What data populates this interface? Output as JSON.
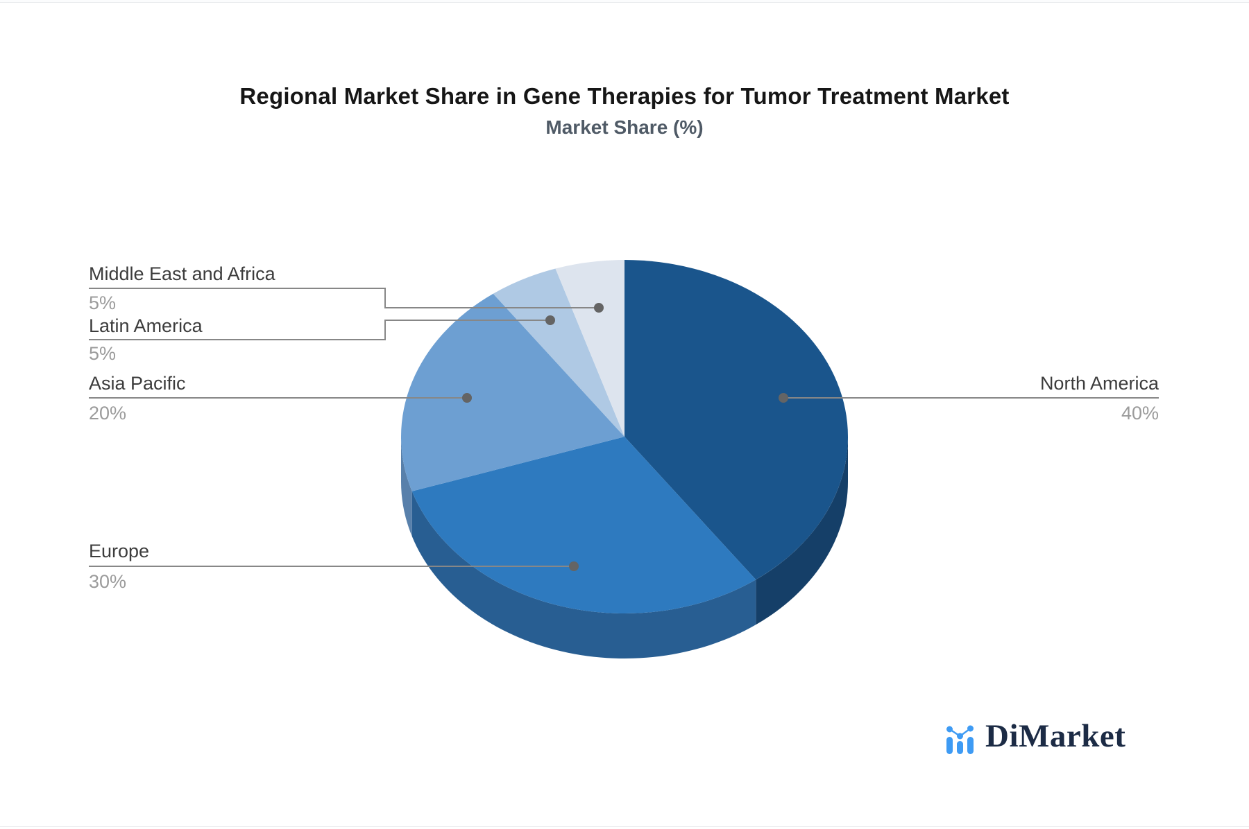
{
  "header": {
    "title": "Regional Market Share in Gene Therapies for Tumor Treatment Market",
    "subtitle": "Market Share (%)"
  },
  "chart_data": {
    "type": "pie",
    "style": "3d",
    "title": "Regional Market Share in Gene Therapies for Tumor Treatment Market",
    "subtitle": "Market Share (%)",
    "unit": "%",
    "direction": "clockwise",
    "start_angle_deg": 0,
    "legend_position": "callout-labels",
    "series": [
      {
        "name": "North America",
        "value": 40,
        "display": "40%",
        "color": "#1a558c",
        "side_color": "#153f68"
      },
      {
        "name": "Europe",
        "value": 30,
        "display": "30%",
        "color": "#2e7abf",
        "side_color": "#285e92"
      },
      {
        "name": "Asia Pacific",
        "value": 20,
        "display": "20%",
        "color": "#6d9fd2",
        "side_color": "#5880ab"
      },
      {
        "name": "Latin America",
        "value": 5,
        "display": "5%",
        "color": "#afc9e4",
        "side_color": "#8fb3d6"
      },
      {
        "name": "Middle East and Africa",
        "value": 5,
        "display": "5%",
        "color": "#dde4ee",
        "side_color": "#c2cfe0"
      }
    ]
  },
  "branding": {
    "logo_text": "DiMarket",
    "logo_icon": "bar-line-chart-icon",
    "logo_icon_color": "#3e9bf4",
    "logo_text_color": "#1c2b45"
  },
  "colors": {
    "label_text": "#3c3c3c",
    "percent_text": "#9b9b9b",
    "leader_line": "#878787",
    "leader_dot": "#646464",
    "title_text": "#161616",
    "subtitle_text": "#4f5a66"
  }
}
